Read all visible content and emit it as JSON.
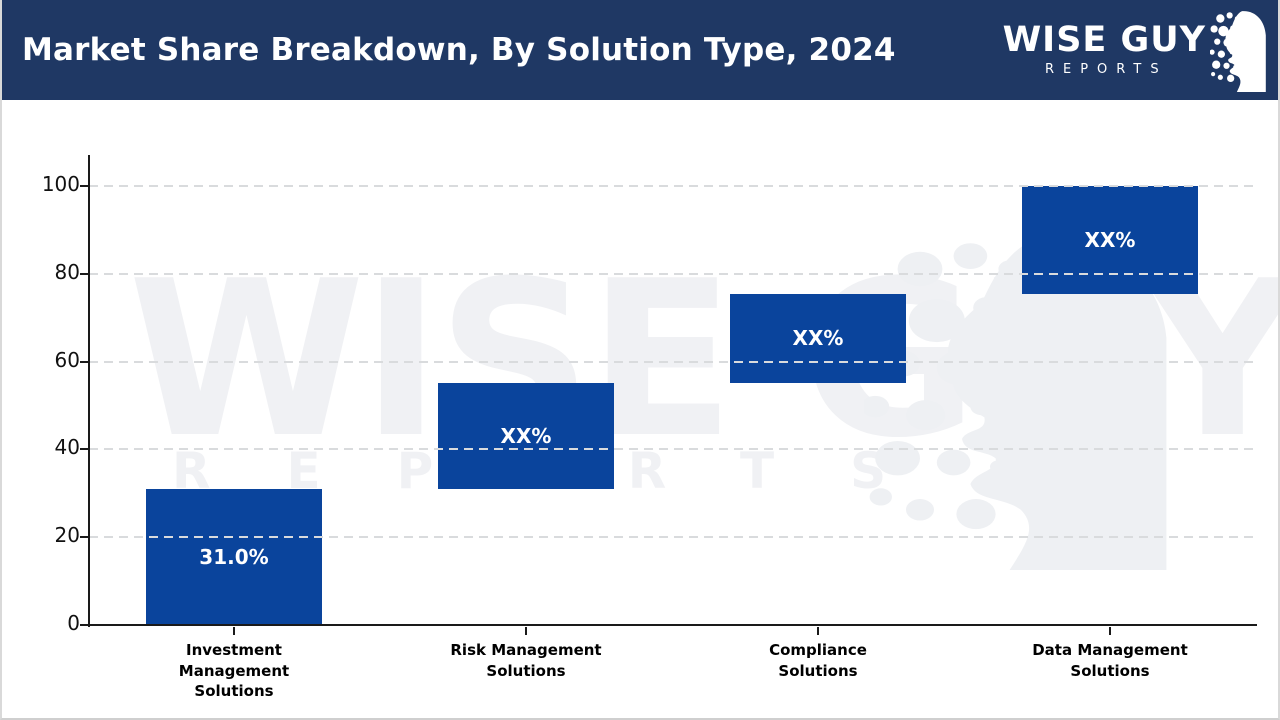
{
  "header": {
    "title": "Market Share Breakdown, By Solution Type, 2024",
    "background_color": "#1f3864",
    "logo": {
      "wordmark": "WISE GUY",
      "subtext": "REPORTS"
    }
  },
  "watermark": {
    "wordmark": "WISE GUY",
    "subtext": "REPORTS"
  },
  "chart_data": {
    "type": "bar",
    "variant": "floating-segment-waterfall",
    "title": "Market Share Breakdown, By Solution Type, 2024",
    "categories": [
      "Investment\nManagement\nSolutions",
      "Risk Management\nSolutions",
      "Compliance\nSolutions",
      "Data Management\nSolutions"
    ],
    "segments": [
      {
        "label": "31.0%",
        "start": 0,
        "end": 31.0
      },
      {
        "label": "XX%",
        "start": 31.0,
        "end": 55.2
      },
      {
        "label": "XX%",
        "start": 55.2,
        "end": 75.5
      },
      {
        "label": "XX%",
        "start": 75.5,
        "end": 100.0
      }
    ],
    "yticks": [
      0,
      20,
      40,
      60,
      80,
      100
    ],
    "ylim": [
      0,
      107
    ],
    "grid": "dashed-horizontal",
    "legend": "none",
    "bar_color": "#0a449c",
    "bar_label_color": "#ffffff",
    "grid_color": "#d9dbdd",
    "axis_color": "#1a1a1a"
  }
}
